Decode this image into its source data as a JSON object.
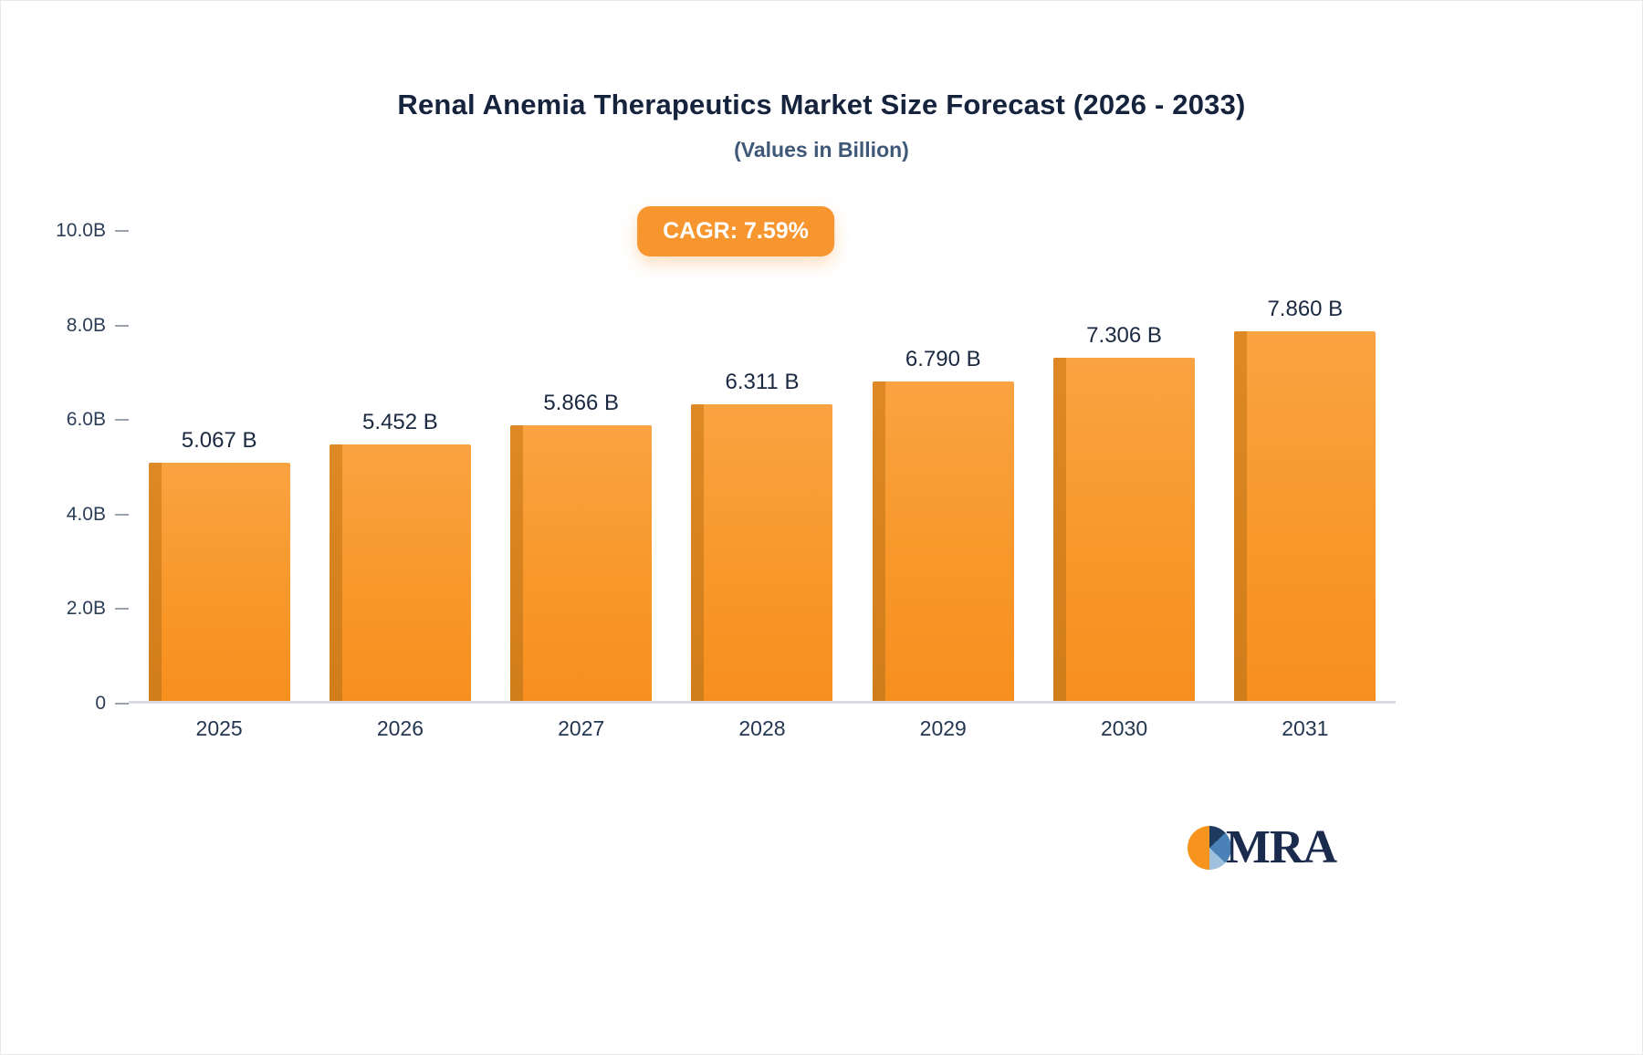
{
  "header": {
    "title": "Renal Anemia Therapeutics Market Size Forecast (2026 - 2033)",
    "subtitle": "(Values in Billion)",
    "badge": "CAGR: 7.59%"
  },
  "logo": {
    "text": "MRA"
  },
  "colors": {
    "bar": "#F7941E",
    "bar_shadow": "#C97A1A",
    "badge": "#F7962E",
    "title_text": "#15233D"
  },
  "chart_data": {
    "type": "bar",
    "title": "Renal Anemia Therapeutics Market Size Forecast (2026 - 2033)",
    "subtitle": "(Values in Billion)",
    "annotation": "CAGR: 7.59%",
    "categories": [
      "2025",
      "2026",
      "2027",
      "2028",
      "2029",
      "2030",
      "2031"
    ],
    "values": [
      5.067,
      5.452,
      5.866,
      6.311,
      6.79,
      7.306,
      7.86
    ],
    "labels": [
      "5.067 B",
      "5.452 B",
      "5.866 B",
      "6.311 B",
      "6.790 B",
      "7.306 B",
      "7.860 B"
    ],
    "xlabel": "",
    "ylabel": "",
    "ylim": [
      0,
      10
    ],
    "yticks": [
      "0",
      "2.0B",
      "4.0B",
      "6.0B",
      "8.0B",
      "10.0B"
    ],
    "grid": false,
    "legend": false
  }
}
